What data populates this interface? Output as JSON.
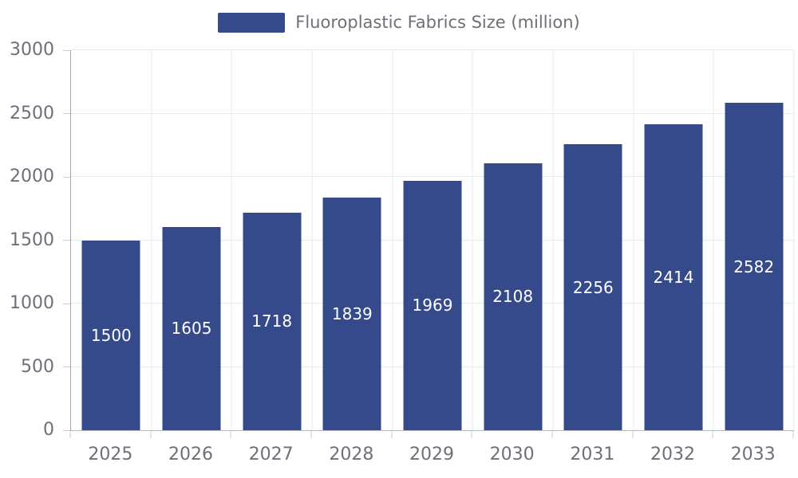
{
  "legend": {
    "label": "Fluoroplastic Fabrics Size (million)",
    "swatch_color": "#344a8b"
  },
  "colors": {
    "bar": "#344a8b",
    "value_label": "#ffffff",
    "axis_text": "#6e7079",
    "gridline": "#e8e8ea",
    "axis_line": "#a3a6ad",
    "background": "#ffffff"
  },
  "chart_data": {
    "type": "bar",
    "title": "Fluoroplastic Fabrics Size (million)",
    "categories": [
      "2025",
      "2026",
      "2027",
      "2028",
      "2029",
      "2030",
      "2031",
      "2032",
      "2033"
    ],
    "values": [
      1500,
      1605,
      1718,
      1839,
      1969,
      2108,
      2256,
      2414,
      2582
    ],
    "series": [
      {
        "name": "Fluoroplastic Fabrics Size (million)",
        "values": [
          1500,
          1605,
          1718,
          1839,
          1969,
          2108,
          2256,
          2414,
          2582
        ]
      }
    ],
    "xlabel": "",
    "ylabel": "",
    "ylim": [
      0,
      3000
    ],
    "y_ticks": [
      0,
      500,
      1000,
      1500,
      2000,
      2500,
      3000
    ],
    "grid": "on",
    "legend_position": "top",
    "value_labels": "inside-center",
    "bar_color": "#344a8b"
  }
}
